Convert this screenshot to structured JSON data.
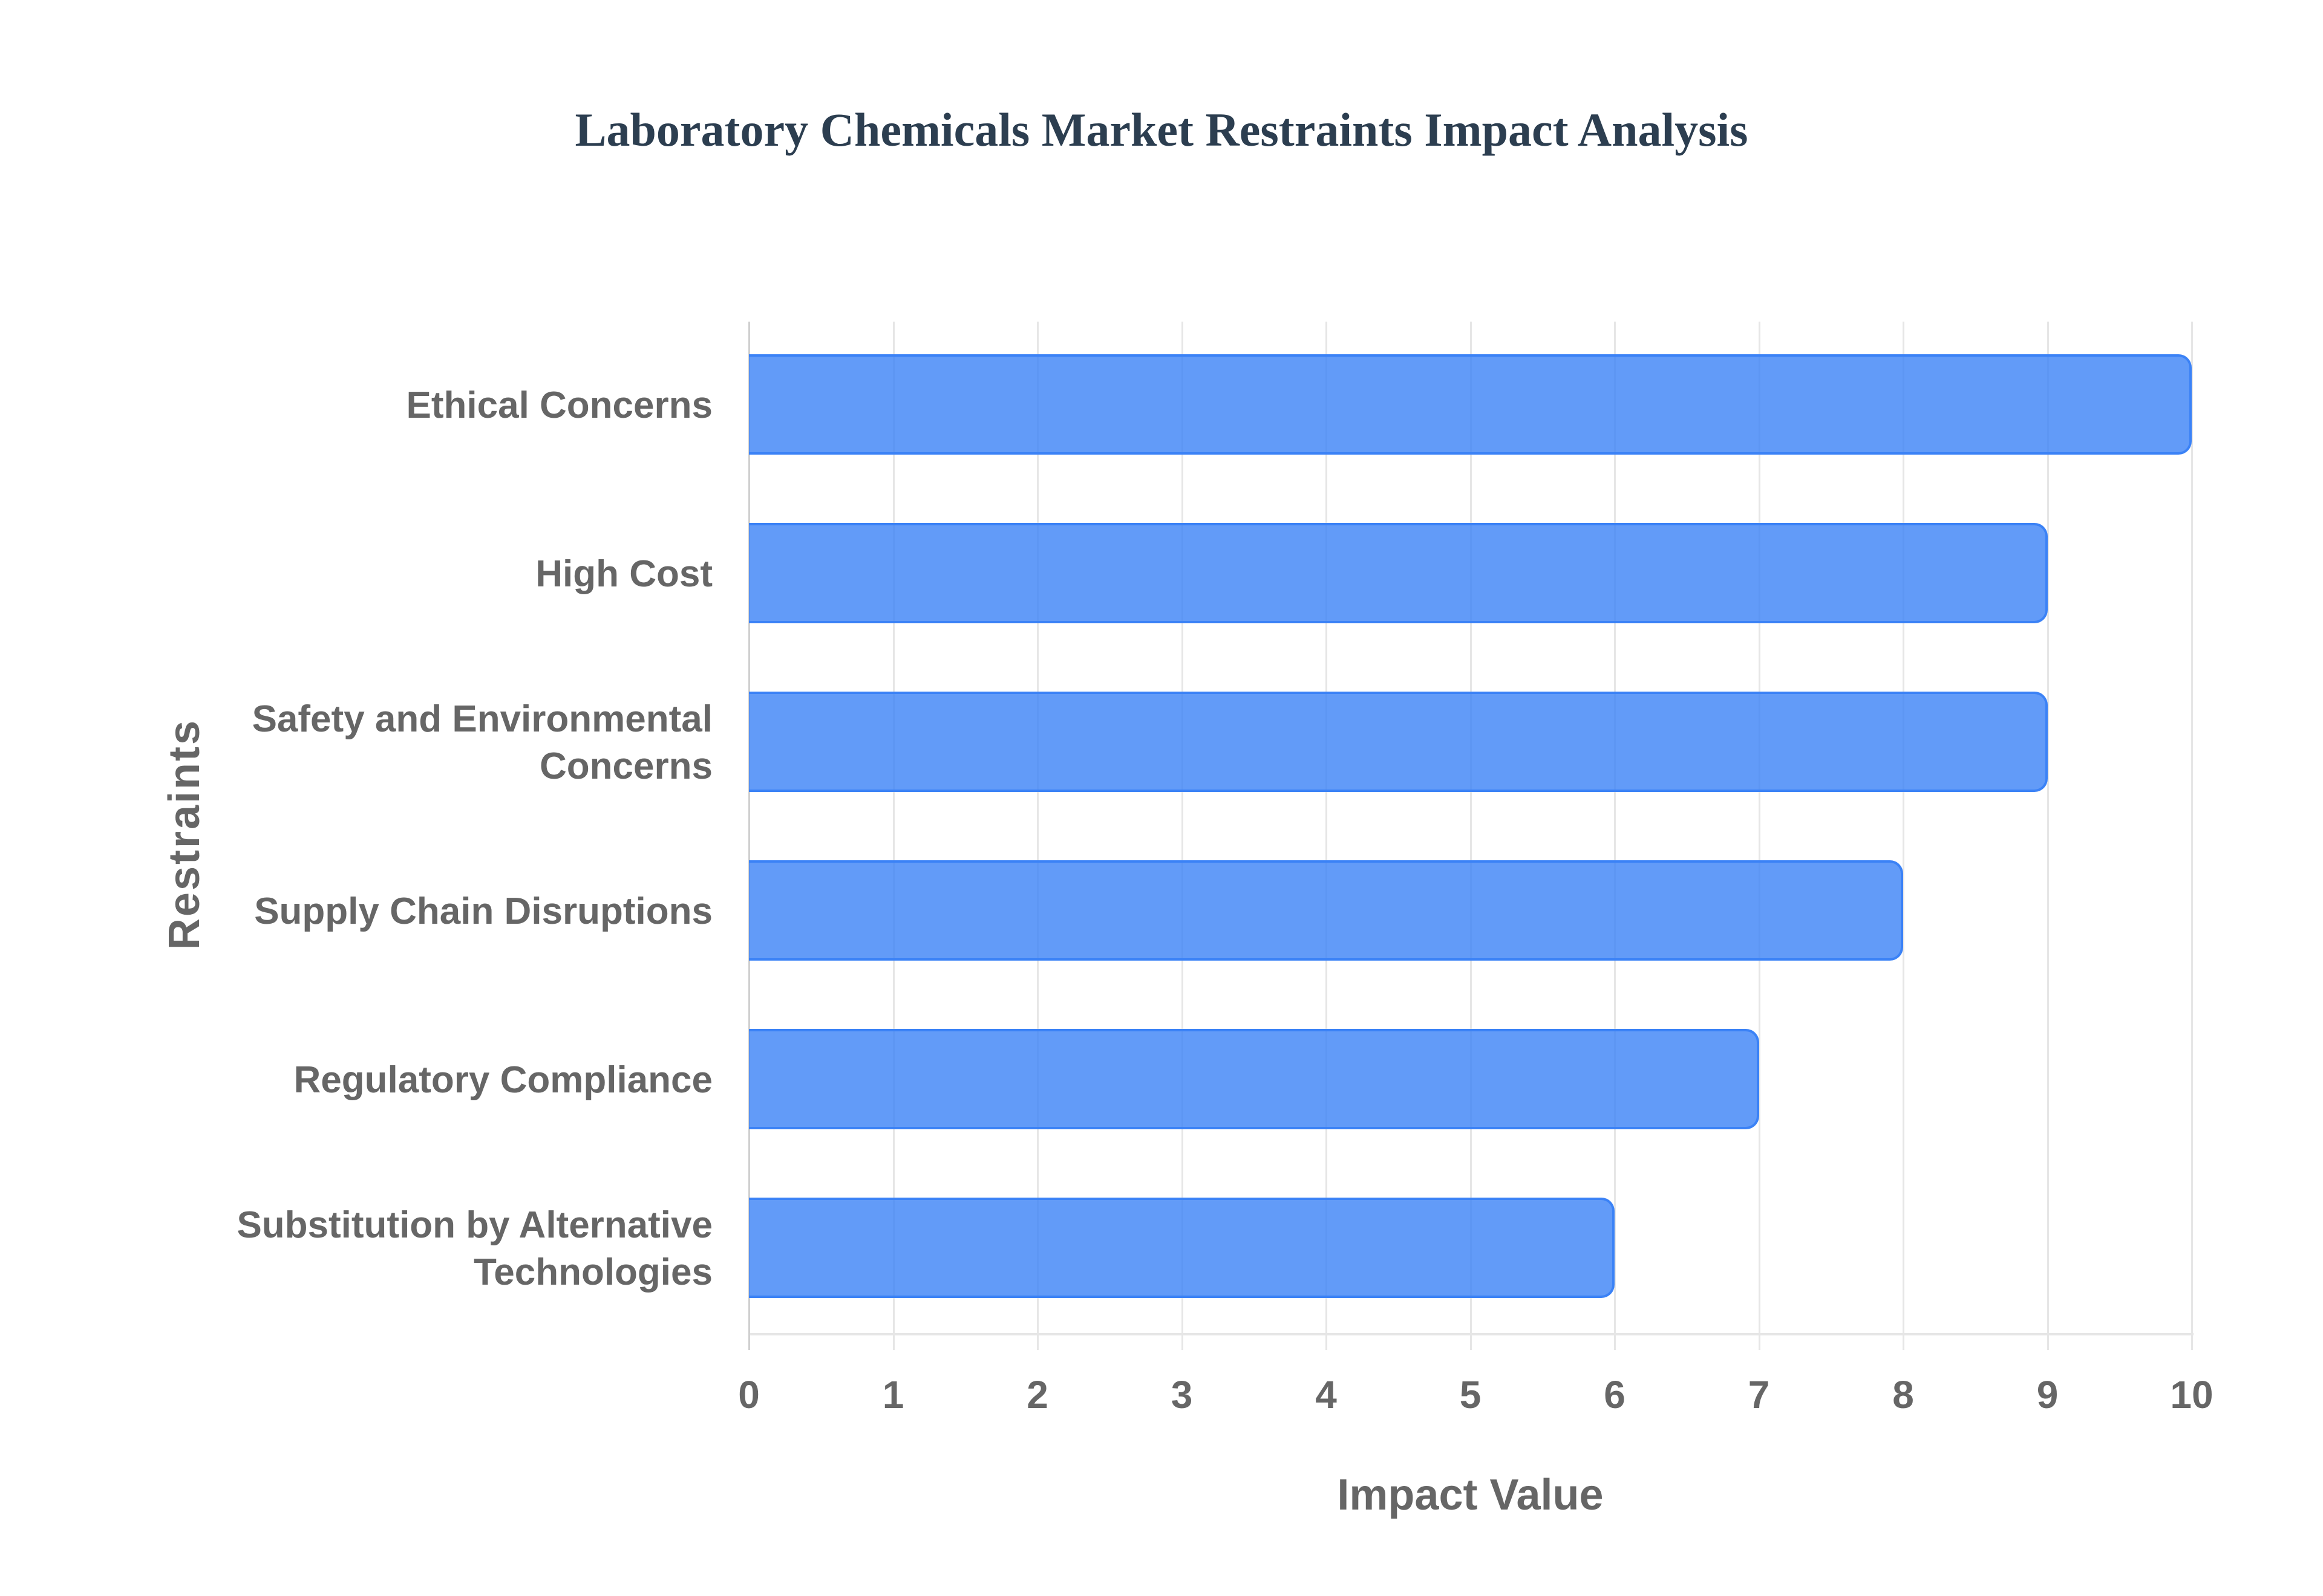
{
  "chart_data": {
    "type": "bar",
    "orientation": "horizontal",
    "title": "Laboratory Chemicals Market Restraints Impact Analysis",
    "xlabel": "Impact Value",
    "ylabel": "Restraints",
    "categories": [
      "Ethical Concerns",
      "High Cost",
      "Safety and Environmental Concerns",
      "Supply Chain Disruptions",
      "Regulatory Compliance",
      "Substitution by Alternative Technologies"
    ],
    "category_lines": [
      [
        "Ethical Concerns"
      ],
      [
        "High Cost"
      ],
      [
        "Safety and Environmental",
        "Concerns"
      ],
      [
        "Supply Chain Disruptions"
      ],
      [
        "Regulatory Compliance"
      ],
      [
        "Substitution by Alternative",
        "Technologies"
      ]
    ],
    "values": [
      10,
      9,
      9,
      8,
      7,
      6
    ],
    "xlim": [
      0,
      10
    ],
    "xticks": [
      "0",
      "1",
      "2",
      "3",
      "4",
      "5",
      "6",
      "7",
      "8",
      "9",
      "10"
    ],
    "grid": true,
    "legend": null,
    "colors": {
      "bar_fill": "#3b82f6cc",
      "bar_border": "#3b82f6",
      "title": "#2c3e50",
      "axis_text": "#666666",
      "grid": "#e6e6e6"
    }
  }
}
